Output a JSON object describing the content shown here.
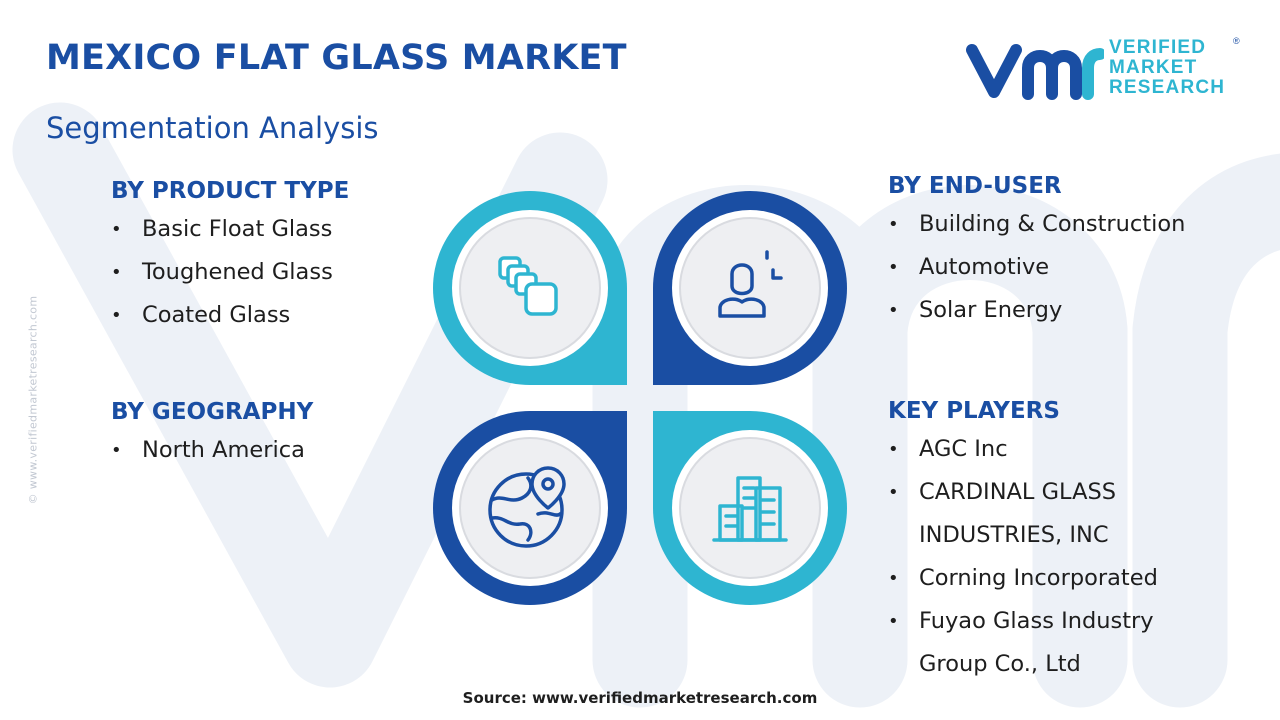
{
  "header": {
    "title": "MEXICO FLAT GLASS MARKET",
    "subtitle": "Segmentation Analysis"
  },
  "logo": {
    "line1": "VERIFIED",
    "line2": "MARKET",
    "line3": "RESEARCH",
    "registered": "®"
  },
  "side_watermark": "© www.verifiedmarketresearch.com",
  "segments": {
    "product_type": {
      "heading": "BY PRODUCT TYPE",
      "items": [
        "Basic Float Glass",
        "Toughened Glass",
        "Coated Glass"
      ]
    },
    "geography": {
      "heading": "BY GEOGRAPHY",
      "items": [
        "North America"
      ]
    },
    "end_user": {
      "heading": "BY END-USER",
      "items": [
        "Building & Construction",
        "Automotive",
        "Solar Energy"
      ]
    },
    "key_players": {
      "heading": "KEY PLAYERS",
      "items": [
        {
          "line1": "AGC Inc",
          "line2": ""
        },
        {
          "line1": "CARDINAL GLASS",
          "line2": "INDUSTRIES, INC"
        },
        {
          "line1": "Corning Incorporated",
          "line2": ""
        },
        {
          "line1": "Fuyao Glass Industry",
          "line2": "Group Co., Ltd"
        }
      ]
    }
  },
  "icons": {
    "top_left": "glass-panes-icon",
    "top_right": "user-icon",
    "bottom_left": "globe-location-icon",
    "bottom_right": "buildings-icon"
  },
  "colors": {
    "navy": "#1a4ea3",
    "cyan": "#2eb5d1",
    "circle_fill": "#eeeff2"
  },
  "source": "Source: www.verifiedmarketresearch.com"
}
